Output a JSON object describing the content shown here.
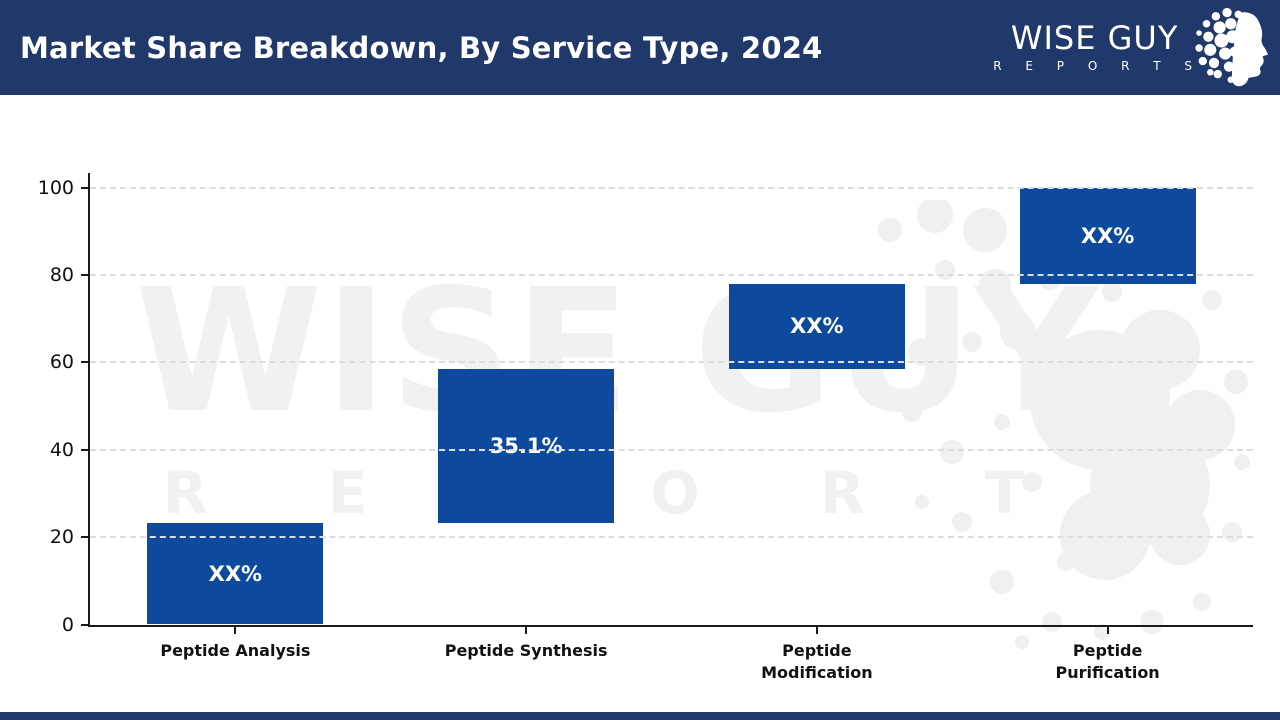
{
  "header": {
    "title": "Market Share Breakdown, By Service Type, 2024",
    "logo": {
      "line1": "WISE GUY",
      "line2": "R E P O R T S"
    }
  },
  "watermark": {
    "line1": "WISE GUY",
    "line2": "R E P O R T S"
  },
  "colors": {
    "header_bg": "#21386a",
    "bar": "#0d4a9e",
    "gridline": "#dcdcdc",
    "axis": "#1a1a1a",
    "bar_label": "#ffffff",
    "title_text": "#ffffff",
    "watermark": "#f1f1f1"
  },
  "chart_data": {
    "type": "bar",
    "subtype": "waterfall",
    "title": "Market Share Breakdown, By Service Type, 2024",
    "categories": [
      "Peptide Analysis",
      "Peptide Synthesis",
      "Peptide Modification",
      "Peptide Purification"
    ],
    "category_lines": [
      [
        "Peptide Analysis"
      ],
      [
        "Peptide Synthesis"
      ],
      [
        "Peptide",
        "Modification"
      ],
      [
        "Peptide",
        "Purification"
      ]
    ],
    "segments": [
      {
        "category": "Peptide Analysis",
        "start": 0,
        "end": 23.3,
        "label": "XX%"
      },
      {
        "category": "Peptide Synthesis",
        "start": 23.3,
        "end": 58.4,
        "label": "35.1%"
      },
      {
        "category": "Peptide Modification",
        "start": 58.4,
        "end": 78.0,
        "label": "XX%"
      },
      {
        "category": "Peptide Purification",
        "start": 78.0,
        "end": 100.0,
        "label": "XX%"
      }
    ],
    "shown_value_labels": [
      "XX%",
      "35.1%",
      "XX%",
      "XX%"
    ],
    "xlabel": "",
    "ylabel": "",
    "ylim": [
      0,
      100
    ],
    "yticks": [
      0,
      20,
      40,
      60,
      80,
      100
    ],
    "grid": "horizontal-dashed",
    "legend": "none"
  }
}
